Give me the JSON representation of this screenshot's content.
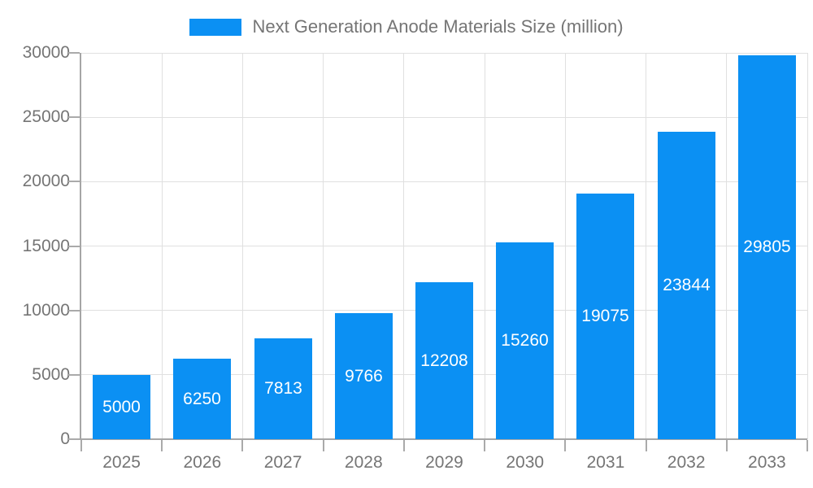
{
  "legend": {
    "label": "Next Generation Anode Materials Size (million)"
  },
  "chart_data": {
    "type": "bar",
    "title": "",
    "series_name": "Next Generation Anode Materials Size (million)",
    "categories": [
      "2025",
      "2026",
      "2027",
      "2028",
      "2029",
      "2030",
      "2031",
      "2032",
      "2033"
    ],
    "values": [
      5000,
      6250,
      7813,
      9766,
      12208,
      15260,
      19075,
      23844,
      29805
    ],
    "bar_value_labels": [
      "5000",
      "6250",
      "7813",
      "9766",
      "12208",
      "15260",
      "19075",
      "23844",
      "29805"
    ],
    "xlabel": "",
    "ylabel": "",
    "ylim": [
      0,
      30000
    ],
    "yticks": [
      0,
      5000,
      10000,
      15000,
      20000,
      25000,
      30000
    ],
    "ytick_labels": [
      "0",
      "5000",
      "10000",
      "15000",
      "20000",
      "25000",
      "30000"
    ],
    "grid": true,
    "legend_position": "top-center",
    "value_label_position": "inside-center"
  },
  "colors": {
    "bar": "#0b90f3",
    "bar_label": "#ffffff",
    "grid": "#e0e0e0",
    "axis": "#a6a6a6",
    "tick": "#aaaaaa",
    "tick_text": "#757575",
    "legend_text": "#757575",
    "background": "#ffffff"
  }
}
